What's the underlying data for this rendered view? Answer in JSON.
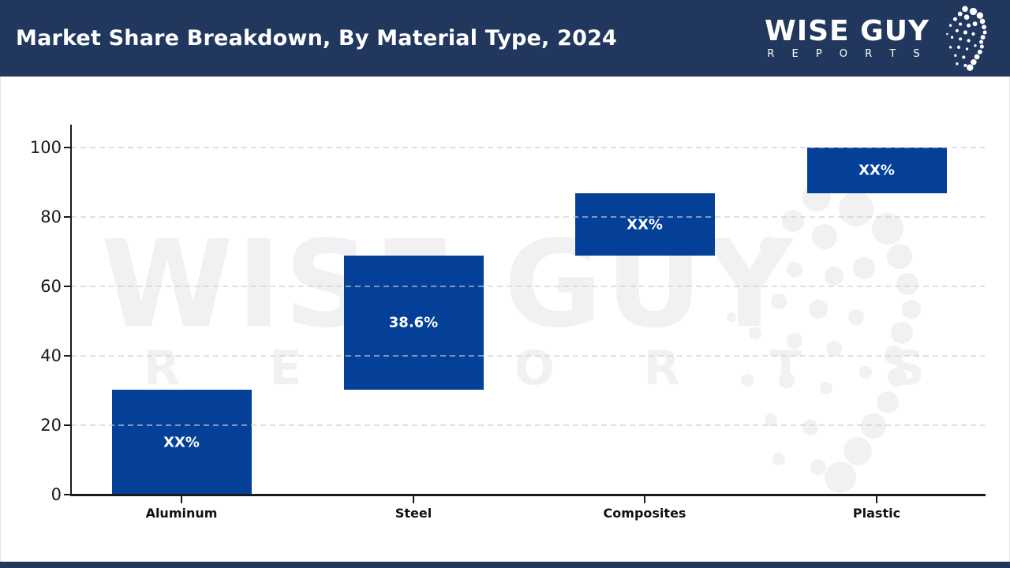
{
  "header": {
    "title": "Market Share Breakdown, By Material Type, 2024",
    "brand": {
      "name": "WISE GUY",
      "tagline": "R E P O R T S"
    }
  },
  "watermark": {
    "line1": "WISE GUY",
    "line2": "R E P O R T S"
  },
  "colors": {
    "header_bg": "#22375E",
    "footer_bg": "#22375E",
    "bar": "#043F98",
    "bar_label": "#FFFFFF",
    "axis": "#1A1A1A",
    "watermark": "#F1F1F4"
  },
  "chart_data": {
    "type": "bar",
    "subtype": "waterfall-floating-bars",
    "title": "Market Share Breakdown, By Material Type, 2024",
    "categories": [
      "Aluminum",
      "Steel",
      "Composites",
      "Plastic"
    ],
    "series": [
      {
        "name": "Market Share",
        "segments": [
          {
            "category": "Aluminum",
            "start": 0,
            "end": 30.2,
            "label": "XX%"
          },
          {
            "category": "Steel",
            "start": 30.2,
            "end": 68.8,
            "label": "38.6%"
          },
          {
            "category": "Composites",
            "start": 68.8,
            "end": 86.8,
            "label": "XX%"
          },
          {
            "category": "Plastic",
            "start": 86.8,
            "end": 100,
            "label": "XX%"
          }
        ]
      }
    ],
    "xlabel": "",
    "ylabel": "",
    "ylim": [
      0,
      100
    ],
    "yticks": [
      0,
      20,
      40,
      60,
      80,
      100
    ],
    "grid": "horizontal dashed, drawn above bars",
    "legend": "none"
  }
}
